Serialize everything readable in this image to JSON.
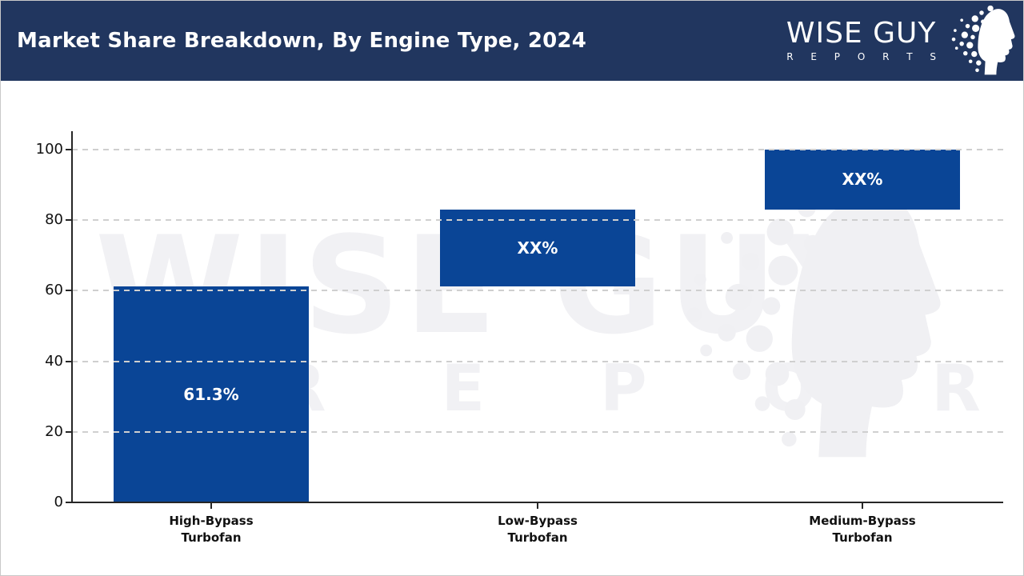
{
  "header": {
    "title": "Market Share Breakdown, By Engine Type, 2024",
    "logo": {
      "wordmark": "WISE GUY",
      "subtext": "R E P O R T S"
    }
  },
  "watermark": {
    "wordmark": "WISE GUY",
    "subtext": "R E P O R T S"
  },
  "chart_data": {
    "type": "bar",
    "variant": "waterfall",
    "title": "Market Share Breakdown, By Engine Type, 2024",
    "categories": [
      [
        "High-Bypass",
        "Turbofan"
      ],
      [
        "Low-Bypass",
        "Turbofan"
      ],
      [
        "Medium-Bypass",
        "Turbofan"
      ]
    ],
    "bars": [
      {
        "start": 0,
        "end": 61.3,
        "label": "61.3%"
      },
      {
        "start": 61.3,
        "end": 83.0,
        "label": "XX%"
      },
      {
        "start": 83.0,
        "end": 100.0,
        "label": "XX%"
      }
    ],
    "y_axis": {
      "ticks": [
        0,
        20,
        40,
        60,
        80,
        100
      ],
      "min": 0,
      "max": 105
    },
    "grid": "dashed-horizontal",
    "legend": "none",
    "xlabel": "",
    "ylabel": "",
    "bar_color": "#0a4596",
    "bar_label_color": "#ffffff"
  },
  "colors": {
    "header_bg": "#21365f",
    "canvas_bg": "#ffffff",
    "axis": "#262626",
    "grid": "#cfcfcf",
    "tick_label": "#111111",
    "watermark": "#f1f1f4"
  }
}
